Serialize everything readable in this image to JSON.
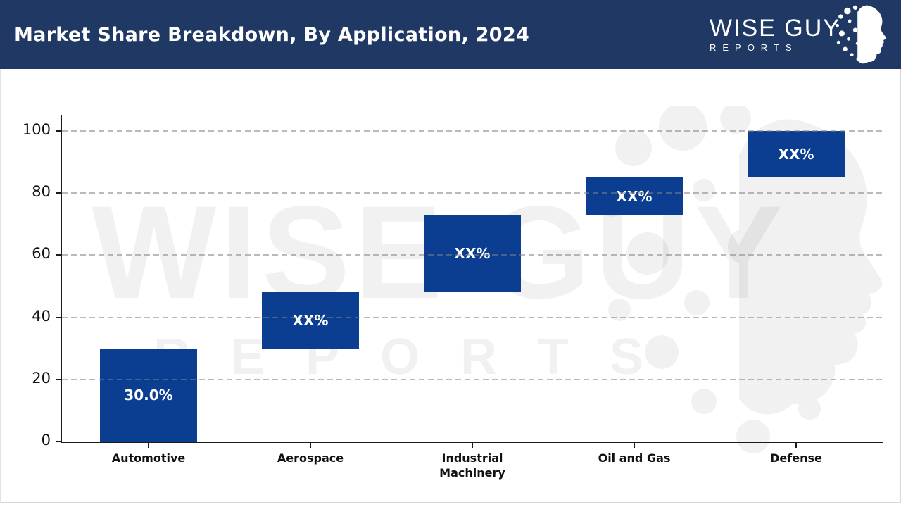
{
  "header": {
    "title": "Market Share Breakdown, By Application, 2024",
    "background_color": "#1F3864",
    "logo": {
      "line1": "WISE GUY",
      "line2": "REPORTS"
    }
  },
  "watermark": {
    "line1": "WISE GUY",
    "line2": "REPORTS"
  },
  "chart_data": {
    "type": "bar",
    "subtype": "waterfall-floating-bars",
    "title": "Market Share Breakdown, By Application, 2024",
    "categories": [
      "Automotive",
      "Aerospace",
      "Industrial Machinery",
      "Oil and Gas",
      "Defense"
    ],
    "segments": [
      {
        "category": "Automotive",
        "start": 0,
        "end": 30,
        "value": 30,
        "label": "30.0%"
      },
      {
        "category": "Aerospace",
        "start": 30,
        "end": 48,
        "value": 18,
        "label": "XX%"
      },
      {
        "category": "Industrial Machinery",
        "start": 48,
        "end": 73,
        "value": 25,
        "label": "XX%"
      },
      {
        "category": "Oil and Gas",
        "start": 73,
        "end": 85,
        "value": 12,
        "label": "XX%"
      },
      {
        "category": "Defense",
        "start": 85,
        "end": 100,
        "value": 15,
        "label": "XX%"
      }
    ],
    "xlabel": "",
    "ylabel": "",
    "yticks": [
      0,
      20,
      40,
      60,
      80,
      100
    ],
    "ylim": [
      0,
      105
    ],
    "grid": "dashed-horizontal",
    "legend": "none",
    "bar_color": "#0B3D91",
    "grid_color": "#c9c9c9",
    "axis_color": "#1a1a1a"
  }
}
